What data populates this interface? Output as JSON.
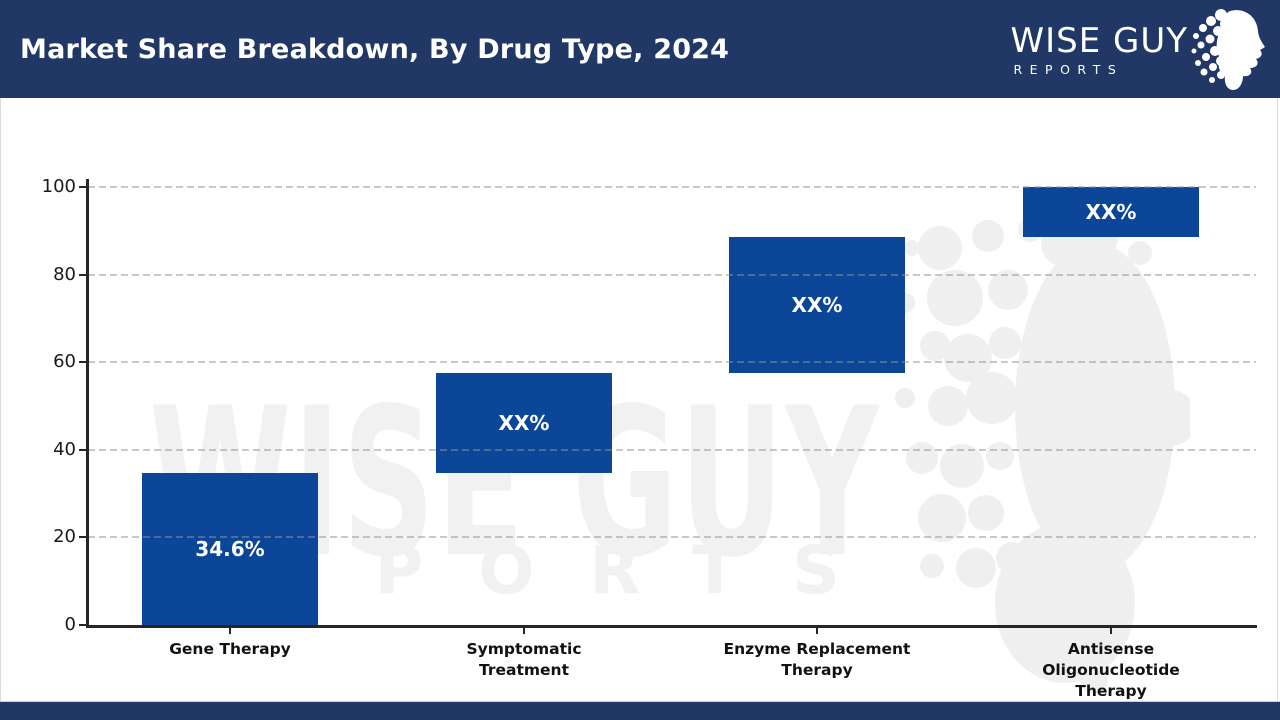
{
  "header": {
    "title": "Market Share Breakdown, By Drug Type, 2024",
    "brand": {
      "name_line": "WISE GUY",
      "reports_line": "REPORTS"
    }
  },
  "watermark": {
    "name_line": "WISE GUY",
    "reports_line": "REPORTS"
  },
  "colors": {
    "header_bg": "#213766",
    "footer_bg": "#213766",
    "bar_fill": "#0c4699",
    "bar_label_text": "#ffffff",
    "axis_line": "#262626",
    "tick_label_text": "#1a1a1a",
    "gridline": "#c9c9c9",
    "watermark": "#f1f1f1",
    "title_text": "#ffffff"
  },
  "chart_data": {
    "type": "bar",
    "subtype": "floating-segment-waterfall",
    "title": "Market Share Breakdown, By Drug Type, 2024",
    "categories": [
      "Gene Therapy",
      "Symptomatic Treatment",
      "Enzyme Replacement Therapy",
      "Antisense Oligonucleotide Therapy"
    ],
    "category_lines": [
      [
        "Gene Therapy"
      ],
      [
        "Symptomatic",
        "Treatment"
      ],
      [
        "Enzyme Replacement",
        "Therapy"
      ],
      [
        "Antisense",
        "Oligonucleotide",
        "Therapy"
      ]
    ],
    "series": [
      {
        "name": "Market share (%)",
        "segments": [
          {
            "category": "Gene Therapy",
            "start": 0,
            "end": 34.6,
            "label": "34.6%"
          },
          {
            "category": "Symptomatic Treatment",
            "start": 34.6,
            "end": 57.5,
            "label": "XX%"
          },
          {
            "category": "Enzyme Replacement Therapy",
            "start": 57.5,
            "end": 88.5,
            "label": "XX%"
          },
          {
            "category": "Antisense Oligonucleotide Therapy",
            "start": 88.5,
            "end": 100,
            "label": "XX%"
          }
        ]
      }
    ],
    "xlabel": "",
    "ylabel": "",
    "ylim": [
      0,
      105
    ],
    "yticks": [
      0,
      20,
      40,
      60,
      80,
      100
    ],
    "grid": "dashed horizontal, drawn over bars",
    "legend": "none"
  }
}
